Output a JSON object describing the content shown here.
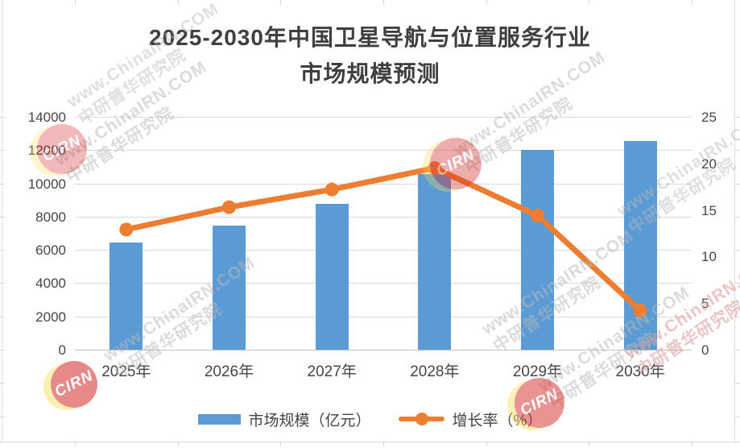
{
  "title": {
    "line1": "2025-2030年中国卫星导航与位置服务行业",
    "line2": "市场规模预测"
  },
  "watermark": {
    "url_text": "www.ChinaIRN.COM",
    "org_text": "中研普华研究院",
    "logo_text": "CIRN"
  },
  "chart_data": {
    "type": "bar+line",
    "categories": [
      "2025年",
      "2026年",
      "2027年",
      "2028年",
      "2029年",
      "2030年"
    ],
    "series": [
      {
        "name": "市场规模（亿元）",
        "type": "bar",
        "axis": "left",
        "color": "#5B9BD5",
        "values": [
          6450,
          7460,
          8770,
          10560,
          12000,
          12550
        ]
      },
      {
        "name": "增长率（%）",
        "type": "line",
        "axis": "right",
        "color": "#ED7D31",
        "values": [
          12.9,
          15.3,
          17.2,
          19.5,
          14.4,
          4.2
        ]
      }
    ],
    "left_axis": {
      "min": 0,
      "max": 14000,
      "step": 2000,
      "ticks": [
        "0",
        "2000",
        "4000",
        "6000",
        "8000",
        "10000",
        "12000",
        "14000"
      ]
    },
    "right_axis": {
      "min": 0,
      "max": 25,
      "step": 5,
      "ticks": [
        "0",
        "5",
        "10",
        "15",
        "20",
        "25"
      ]
    },
    "grid": true,
    "legend_position": "bottom"
  },
  "colors": {
    "bar": "#5B9BD5",
    "line": "#ED7D31",
    "grid": "#D9D9D9",
    "axis_text": "#454545",
    "title_text": "#3F3F3F",
    "background": "#FFFFFF",
    "watermark_gray": "#B9B9B9",
    "watermark_pink": "#DD9F9F",
    "logo_red": "#D42A2A",
    "logo_yellow": "#FFD94D"
  }
}
